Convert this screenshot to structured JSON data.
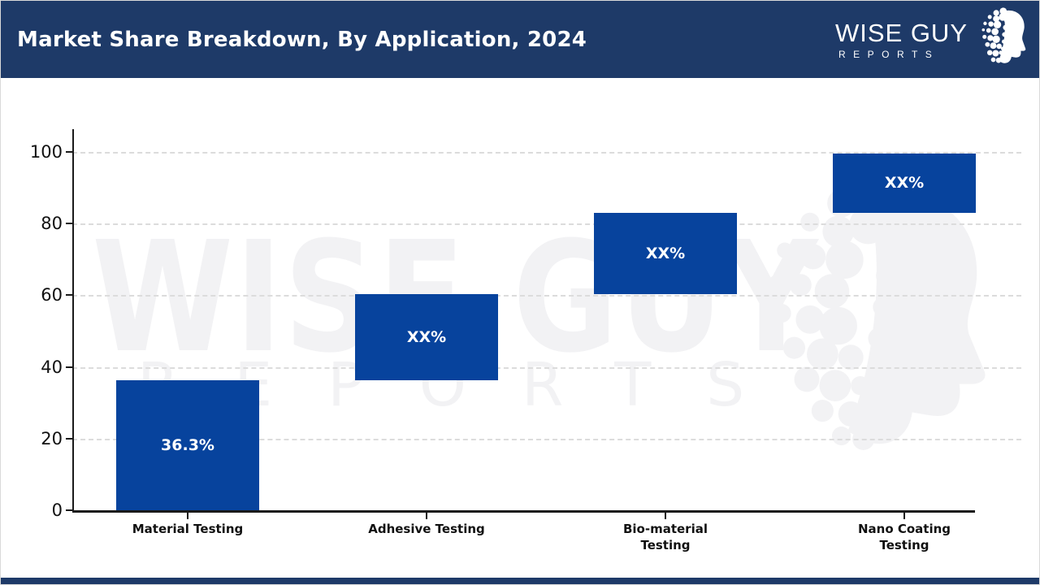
{
  "header": {
    "title": "Market Share Breakdown, By Application, 2024",
    "logo": {
      "name_line": "WISE GUY",
      "sub_line": "REPORTS"
    }
  },
  "watermark": {
    "big_text": "WISE GUY",
    "sub_text": "REPORTS"
  },
  "colors": {
    "header_bg": "#1e3a68",
    "footer_bg": "#1e3a68",
    "bar": "#07439d",
    "bar_label": "#ffffff",
    "grid": "#dcdcdc",
    "axis": "#1a1a1a",
    "tick_text": "#111111",
    "watermark": "#f2f2f4",
    "title_text": "#ffffff"
  },
  "chart_data": {
    "type": "bar",
    "subtype": "waterfall",
    "title": "Market Share Breakdown, By Application, 2024",
    "categories": [
      "Material Testing",
      "Adhesive Testing",
      "Bio-material Testing",
      "Nano Coating Testing"
    ],
    "category_lines": [
      [
        "Material Testing"
      ],
      [
        "Adhesive Testing"
      ],
      [
        "Bio-material",
        "Testing"
      ],
      [
        "Nano Coating",
        "Testing"
      ]
    ],
    "segments": [
      {
        "category": "Material Testing",
        "start": 0,
        "end": 36.3,
        "size": 36.3,
        "label": "36.3%"
      },
      {
        "category": "Adhesive Testing",
        "start": 36.3,
        "end": 60.3,
        "size": 24.0,
        "label": "XX%"
      },
      {
        "category": "Bio-material Testing",
        "start": 60.3,
        "end": 83.0,
        "size": 22.7,
        "label": "XX%"
      },
      {
        "category": "Nano Coating Testing",
        "start": 83.0,
        "end": 99.6,
        "size": 16.6,
        "label": "XX%"
      }
    ],
    "xlabel": "",
    "ylabel": "",
    "yticks": [
      0,
      20,
      40,
      60,
      80,
      100
    ],
    "ylim": [
      0,
      106
    ],
    "grid": {
      "horizontal": true,
      "style": "dashed"
    },
    "legend": null,
    "bar_value_labels_inside": true
  }
}
